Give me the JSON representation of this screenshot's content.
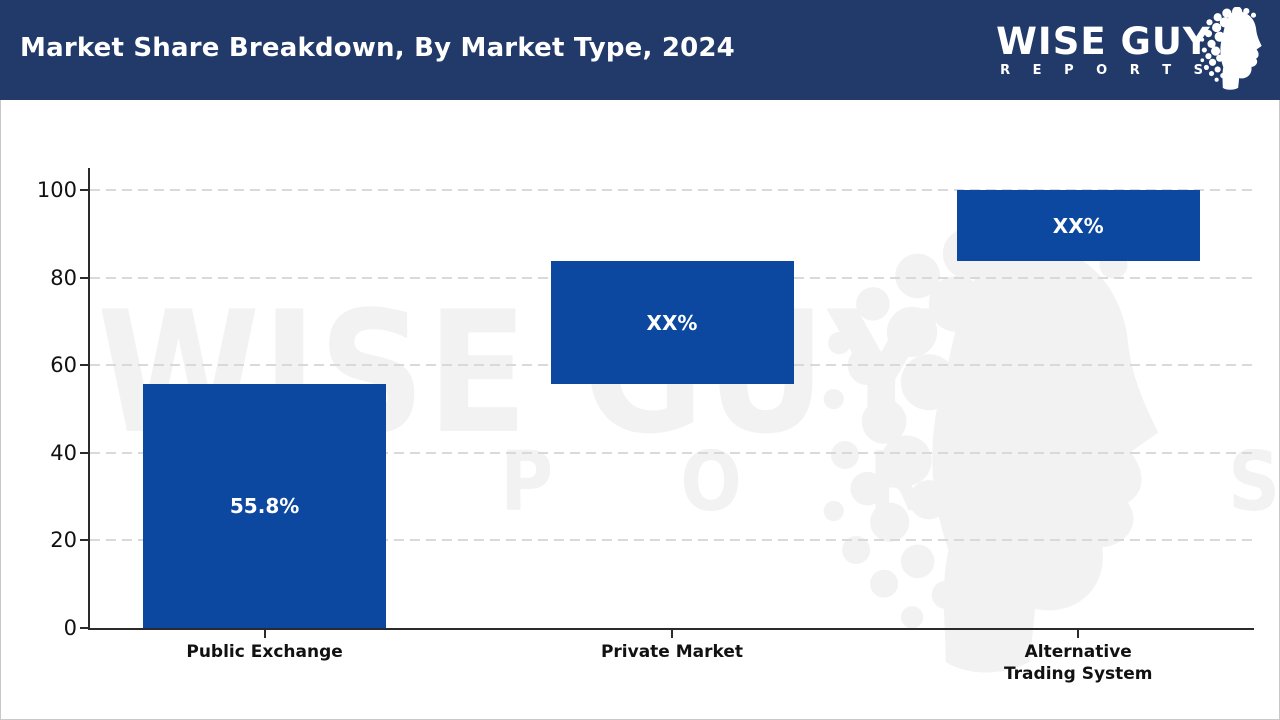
{
  "header": {
    "title": "Market Share Breakdown, By Market Type, 2024",
    "bg_color": "#213a69",
    "brand": {
      "name": "WISE GUY",
      "subtitle": "R E P O R T S",
      "icon": "dotted-head-profile-icon",
      "text_color": "#ffffff"
    }
  },
  "watermark": {
    "line1": "WISE GUY",
    "line2": "R E P O R T S",
    "color": "#f2f2f2"
  },
  "chart_data": {
    "type": "bar",
    "subtype": "floating-segment-breakdown",
    "title": "Market Share Breakdown, By Market Type, 2024",
    "categories": [
      "Public Exchange",
      "Private Market",
      "Alternative Trading System"
    ],
    "category_label_lines": [
      [
        "Public Exchange"
      ],
      [
        "Private Market"
      ],
      [
        "Alternative",
        "Trading System"
      ]
    ],
    "segments": [
      {
        "category": "Public Exchange",
        "start": 0,
        "end": 55.8,
        "value_label": "55.8%"
      },
      {
        "category": "Private Market",
        "start": 55.8,
        "end": 83.7,
        "value_label": "XX%"
      },
      {
        "category": "Alternative Trading System",
        "start": 83.8,
        "end": 99.9,
        "value_label": "XX%"
      }
    ],
    "xlabel": "",
    "ylabel": "",
    "ylim": [
      0,
      100
    ],
    "yticks": [
      0,
      20,
      40,
      60,
      80,
      100
    ],
    "grid": {
      "axis": "y",
      "style": "dashed",
      "on": true
    },
    "legend": "none",
    "colors": {
      "bar": "#0c47a0",
      "bar_label": "#ffffff",
      "axis": "#2b2b2b",
      "tick_label": "#111111",
      "gridline": "#d9d9d9"
    }
  }
}
